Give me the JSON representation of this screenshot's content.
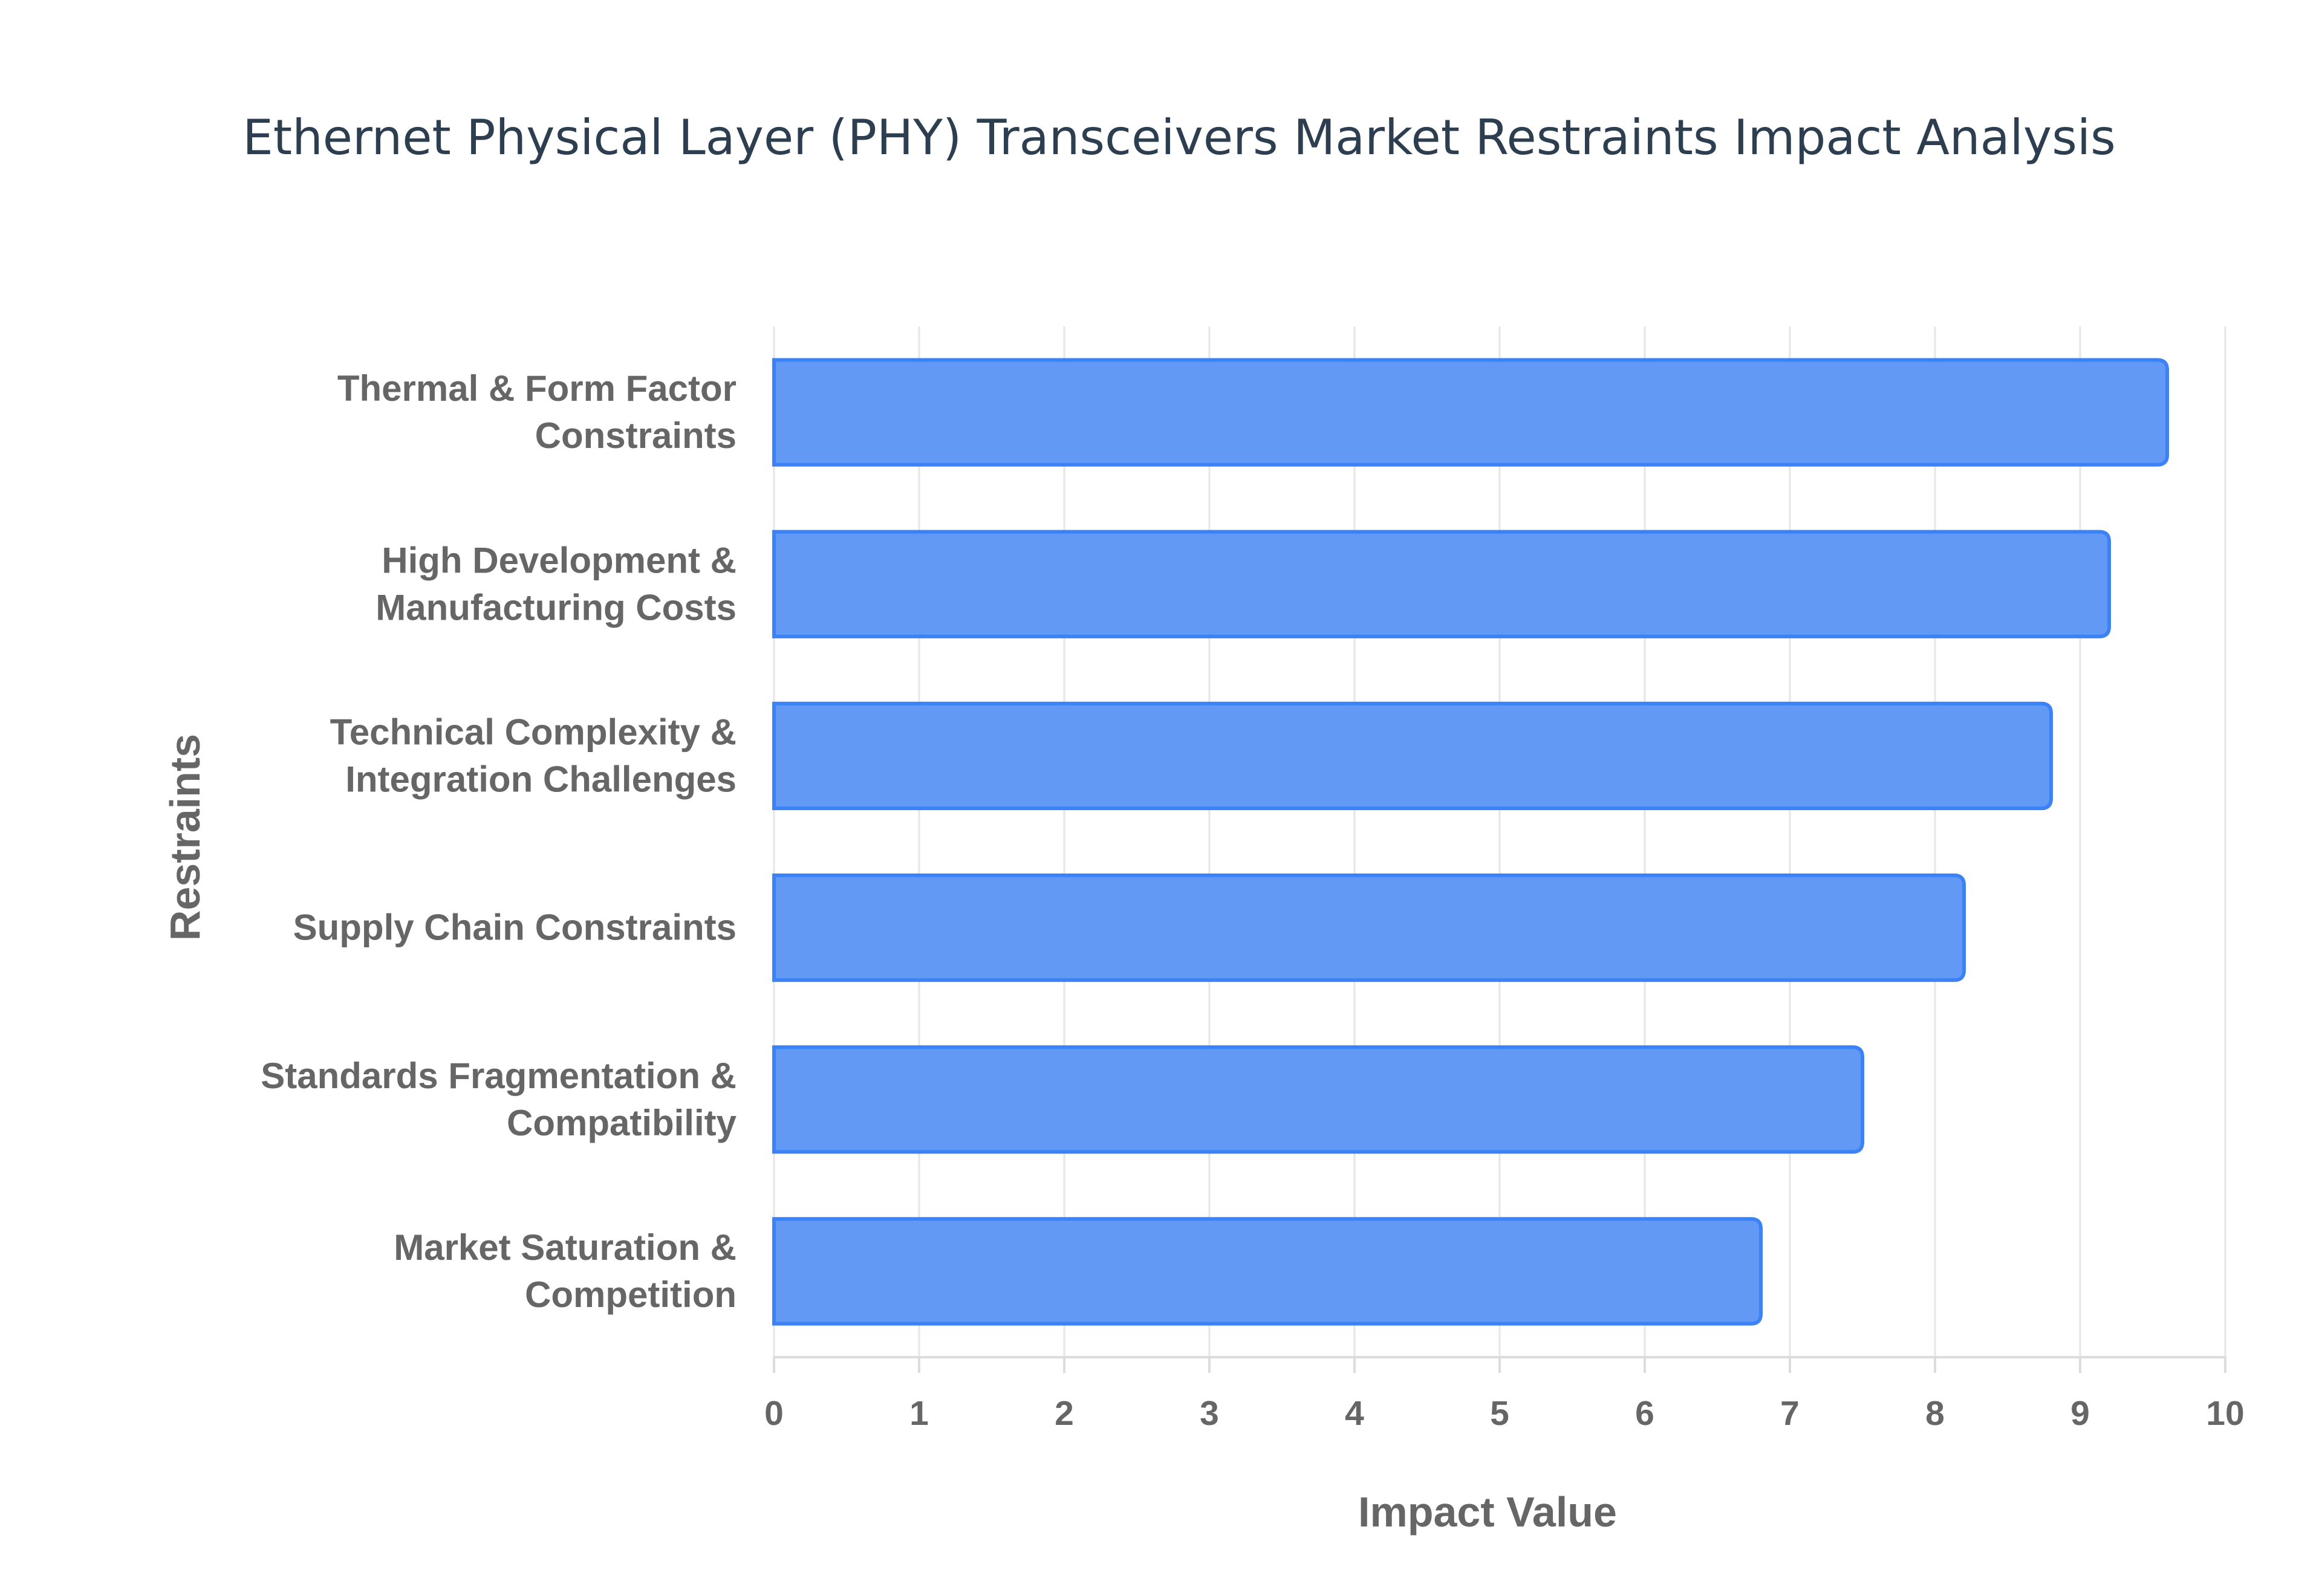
{
  "chart_data": {
    "type": "bar",
    "orientation": "horizontal",
    "title": "Ethernet Physical Layer (PHY) Transceivers Market Restraints Impact Analysis",
    "xlabel": "Impact Value",
    "ylabel": "Restraints",
    "xlim": [
      0,
      10
    ],
    "xticks": [
      "0",
      "1",
      "2",
      "3",
      "4",
      "5",
      "6",
      "7",
      "8",
      "9",
      "10"
    ],
    "grid": true,
    "legend": false,
    "categories": [
      [
        "Thermal & Form Factor",
        "Constraints"
      ],
      [
        "High Development &",
        "Manufacturing Costs"
      ],
      [
        "Technical Complexity &",
        "Integration Challenges"
      ],
      [
        "Supply Chain Constraints"
      ],
      [
        "Standards Fragmentation &",
        "Compatibility"
      ],
      [
        "Market Saturation &",
        "Competition"
      ]
    ],
    "values": [
      9.6,
      9.2,
      8.8,
      8.2,
      7.5,
      6.8
    ],
    "colors": {
      "bar_fill": "#6199f5",
      "bar_stroke": "#3b82f6",
      "title": "#2c3e50",
      "text": "#666666",
      "grid": "#e6e6e6"
    }
  }
}
